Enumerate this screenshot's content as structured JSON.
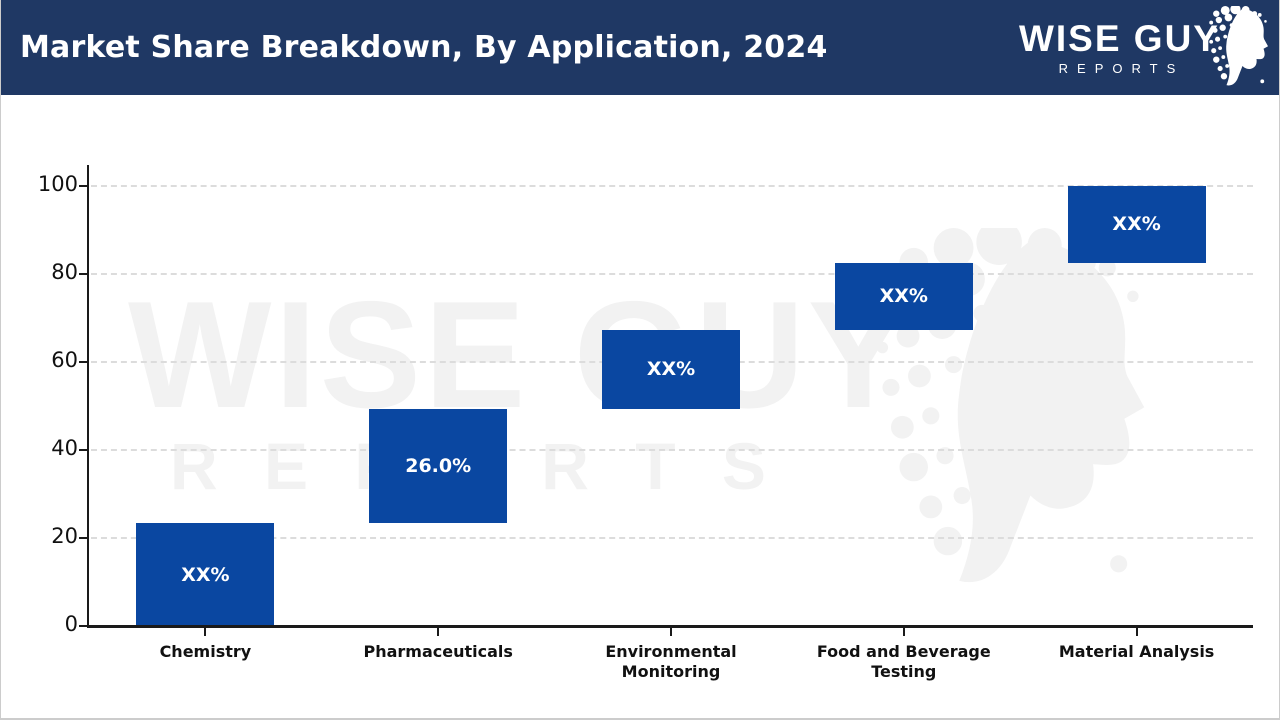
{
  "header": {
    "title": "Market Share Breakdown, By Application, 2024",
    "logo": {
      "name": "WISE GUY",
      "tagline": "REPORTS"
    }
  },
  "watermark": {
    "name": "WISE GUY",
    "tagline": "REPORTS"
  },
  "chart_data": {
    "type": "bar",
    "subtype": "waterfall",
    "title": "Market Share Breakdown, By Application, 2024",
    "categories": [
      [
        "Chemistry"
      ],
      [
        "Pharmaceuticals"
      ],
      [
        "Environmental",
        "Monitoring"
      ],
      [
        "Food and Beverage",
        "Testing"
      ],
      [
        "Material Analysis"
      ]
    ],
    "segments": [
      {
        "category": "Chemistry",
        "start": 0,
        "end": 23.4,
        "label": "XX%"
      },
      {
        "category": "Pharmaceuticals",
        "start": 23.4,
        "end": 49.4,
        "label": "26.0%"
      },
      {
        "category": "Environmental Monitoring",
        "start": 49.4,
        "end": 67.3,
        "label": "XX%"
      },
      {
        "category": "Food and Beverage Testing",
        "start": 67.3,
        "end": 82.6,
        "label": "XX%"
      },
      {
        "category": "Material Analysis",
        "start": 82.6,
        "end": 100,
        "label": "XX%"
      }
    ],
    "yticks": [
      0,
      20,
      40,
      60,
      80,
      100
    ],
    "ylim": [
      0,
      105
    ],
    "xlabel": "",
    "ylabel": "",
    "legend": null,
    "grid": "horizontal-dashed",
    "bar_color": "#0a47a1",
    "bar_label_color": "#ffffff"
  },
  "colors": {
    "header_bg": "#1f3864",
    "bar": "#0a47a1",
    "grid": "#dcdcdc",
    "axis": "#1a1a1a",
    "watermark": "#f2f2f2",
    "page_border": "#cccccc"
  }
}
